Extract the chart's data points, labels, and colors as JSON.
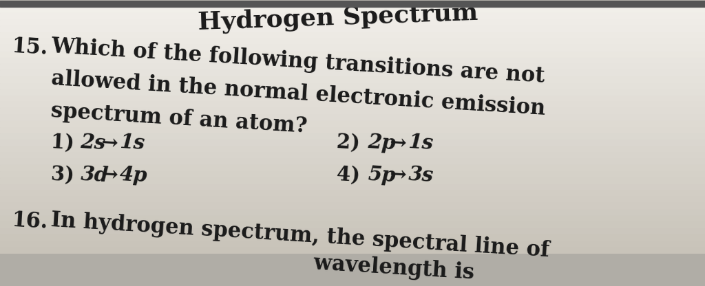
{
  "title": "Hydrogen Spectrum",
  "bg_color_top": "#e8e6e0",
  "bg_color_mid": "#d8d4cc",
  "bg_color_bot": "#c8c4bc",
  "text_color": "#1a1a1a",
  "title_fontsize": 26,
  "body_fontsize": 22,
  "opt_fontsize": 21,
  "q16_fontsize": 22,
  "page_rotation": -3.5,
  "title_rotation": 5.0,
  "q15_line1": "Which of the following transitions are not",
  "q15_line2": "allowed in the normal electronic emission",
  "q15_line3": "spectrum of an atom?",
  "q16_line": "In hydrogen spectrum, the spectral line of"
}
